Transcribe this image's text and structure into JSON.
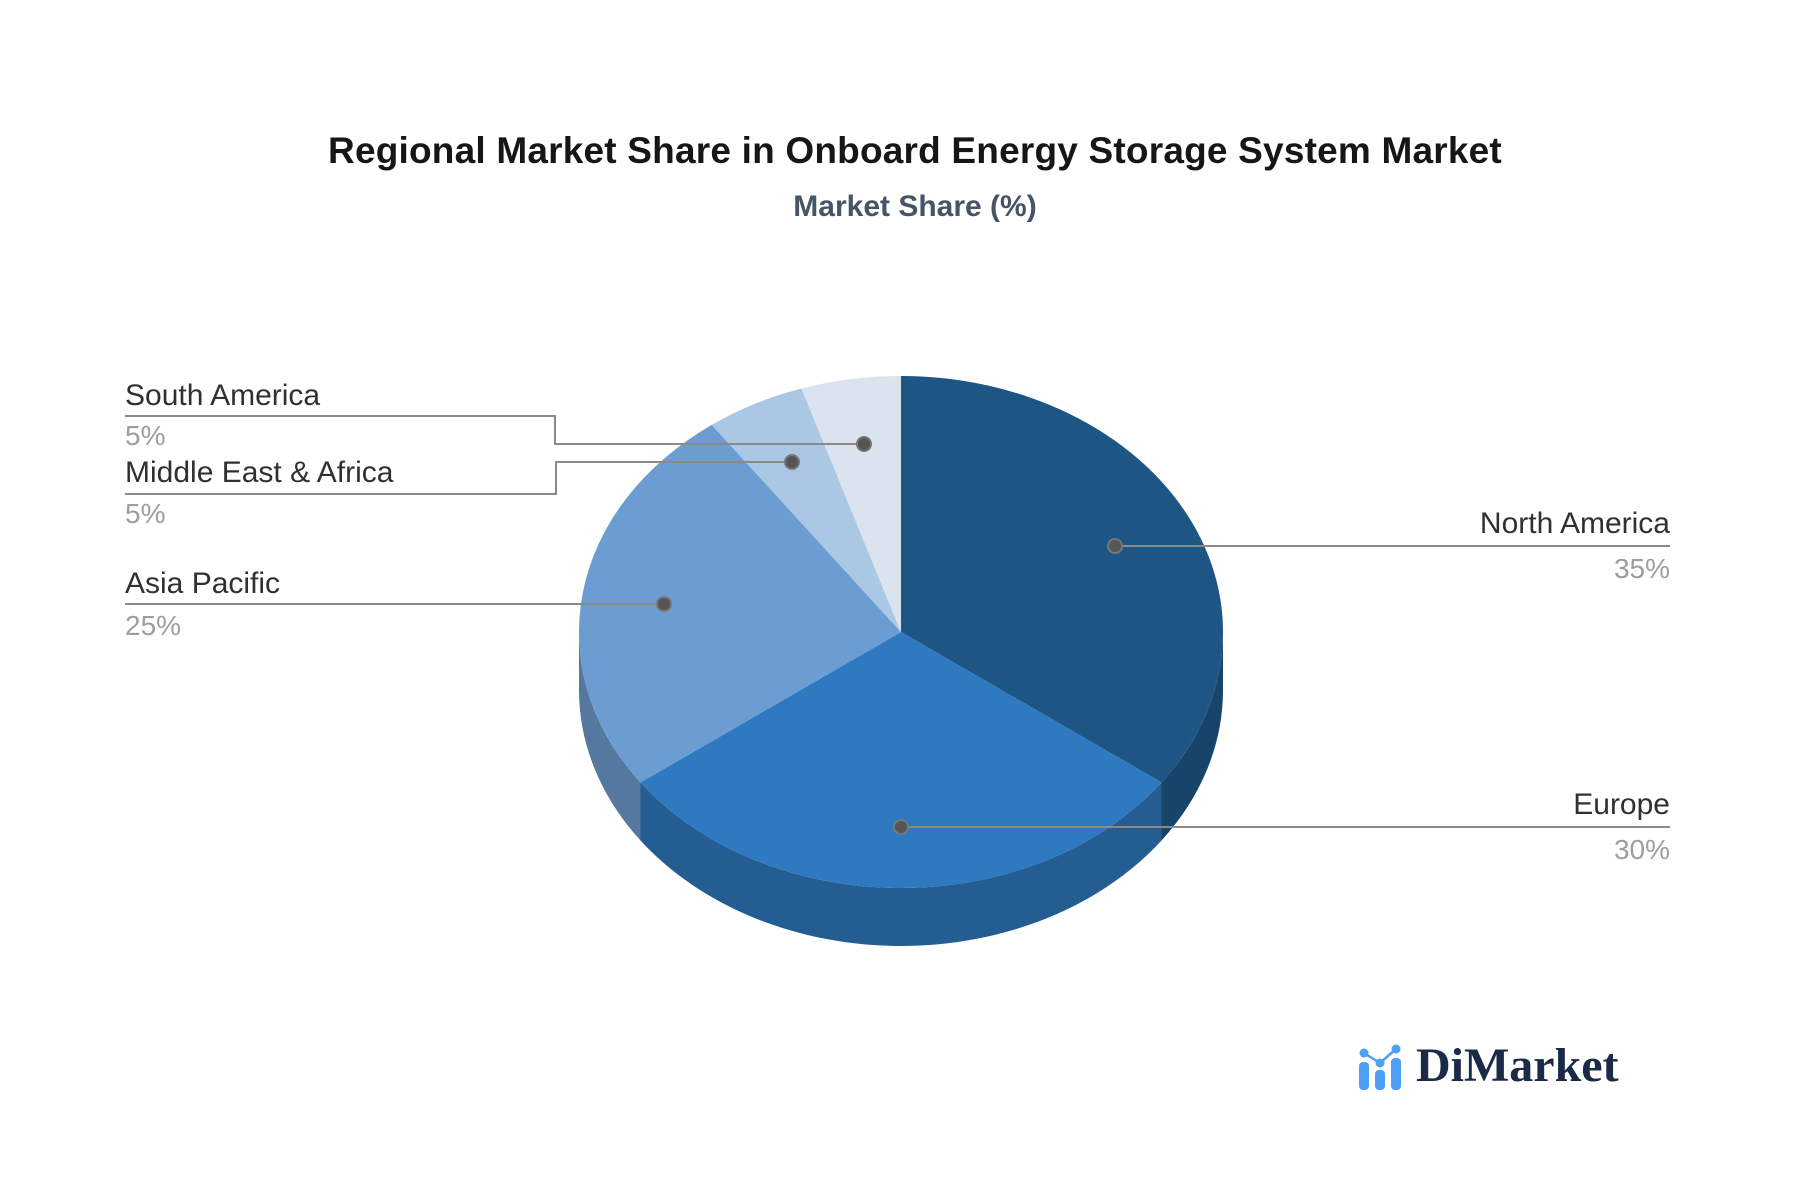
{
  "chart": {
    "title": "Regional Market Share in Onboard Energy Storage System Market",
    "subtitle": "Market Share (%)"
  },
  "chart_data": {
    "type": "pie",
    "style": "3d",
    "title": "Regional Market Share in Onboard Energy Storage System Market",
    "subtitle": "Market Share (%)",
    "unit": "%",
    "labels": [
      "North America",
      "Europe",
      "Asia Pacific",
      "Middle East & Africa",
      "South America"
    ],
    "values": [
      35,
      30,
      25,
      5,
      5
    ],
    "display": [
      "35%",
      "30%",
      "25%",
      "5%",
      "5%"
    ],
    "colors": [
      "#1d5585",
      "#2e79bf",
      "#6b9cd2",
      "#aac7e4",
      "#dbe4ee"
    ],
    "shades": [
      "#174569",
      "#235d92",
      "#54789e",
      "#9db8d4",
      "#c9d4e2"
    ],
    "start_angle_deg": 0,
    "direction": "clockwise",
    "legend": "none",
    "label_layout": "callout-lines-with-dots"
  },
  "style_colors": {
    "connector": "#8a8a8a",
    "dot_fill": "#555555",
    "dot_stroke": "#777777",
    "title": "#161616",
    "subtitle": "#475467",
    "label": "#303030",
    "percent": "#9e9e9e",
    "logo_icon": "#4da0f5",
    "logo_text": "#1b2a47"
  },
  "brand": {
    "name": "DiMarket"
  }
}
